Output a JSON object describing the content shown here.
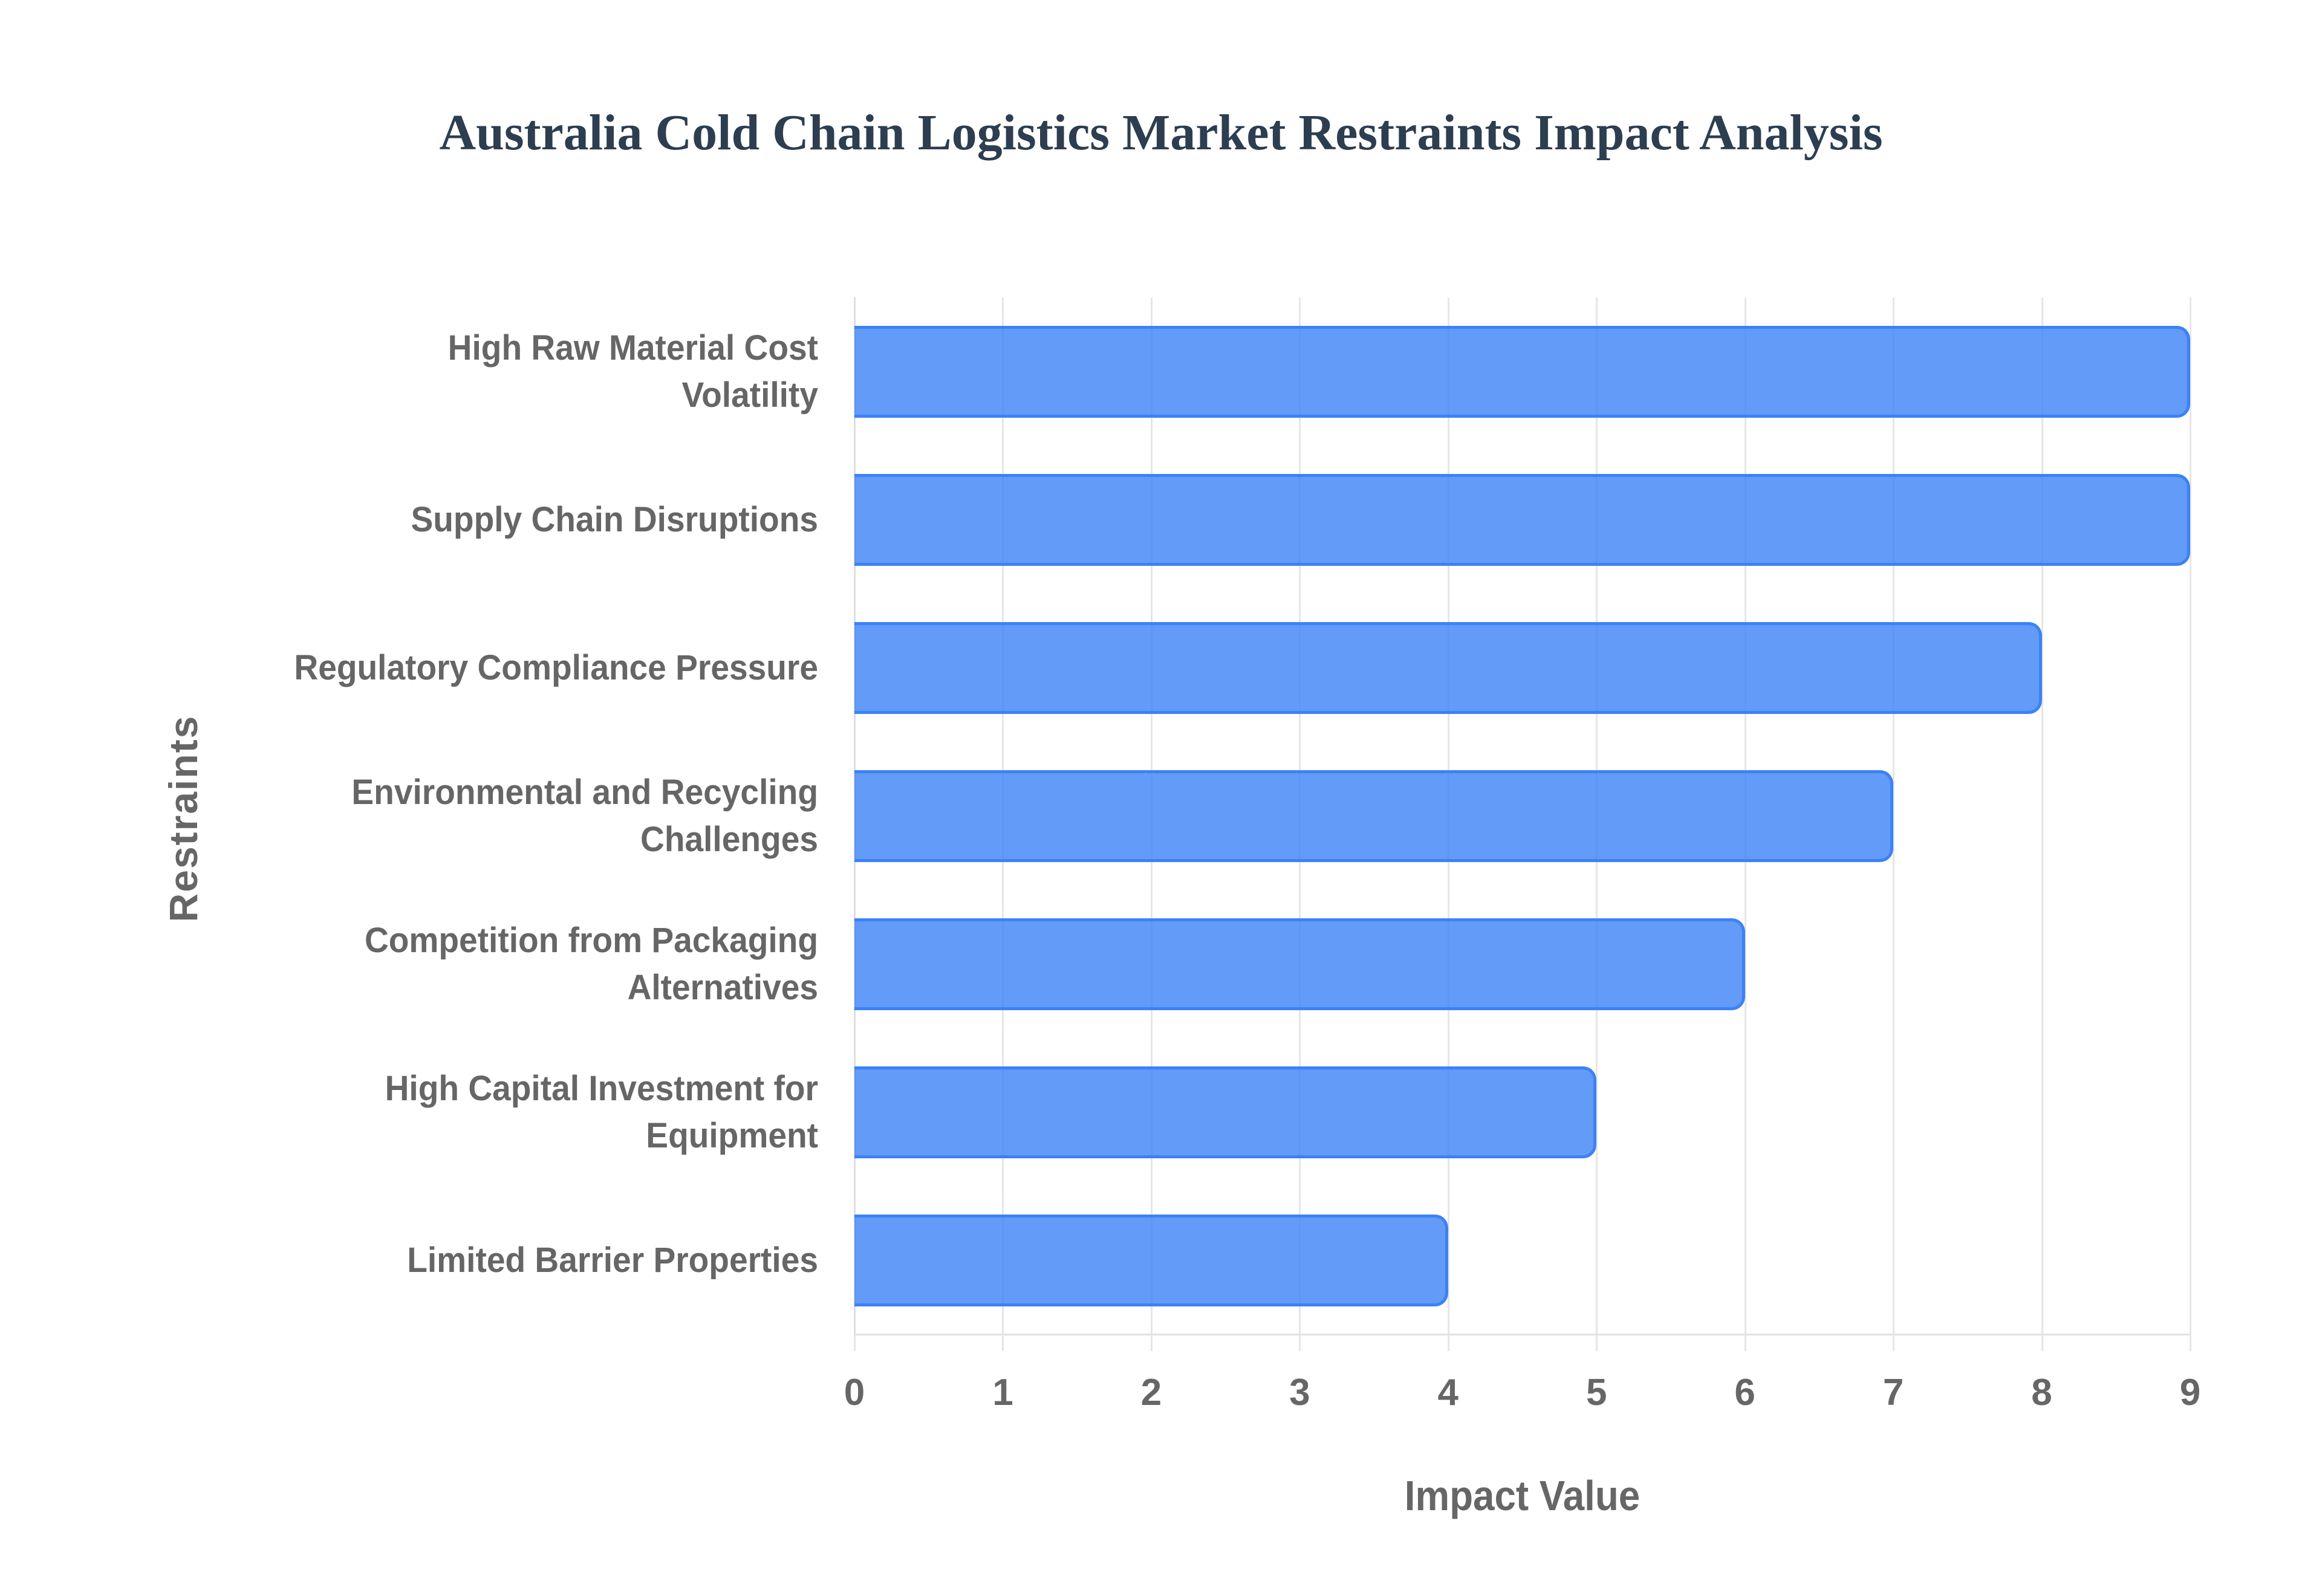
{
  "title": "Australia Cold Chain Logistics Market Restraints Impact Analysis",
  "colors": {
    "bar_fill": "rgba(59,130,246,0.8)",
    "bar_border": "#3b82f6",
    "title": "#2c3e50",
    "axis_text": "#666666",
    "grid": "#e6e6e6"
  },
  "chart_data": {
    "type": "bar",
    "orientation": "horizontal",
    "title": "Australia Cold Chain Logistics Market Restraints Impact Analysis",
    "xlabel": "Impact Value",
    "ylabel": "Restraints",
    "categories": [
      "High Raw Material Cost Volatility",
      "Supply Chain Disruptions",
      "Regulatory Compliance Pressure",
      "Environmental and Recycling Challenges",
      "Competition from Packaging Alternatives",
      "High Capital Investment for Equipment",
      "Limited Barrier Properties"
    ],
    "category_label_lines": [
      [
        "High Raw Material Cost",
        "Volatility"
      ],
      [
        "Supply Chain Disruptions"
      ],
      [
        "Regulatory Compliance Pressure"
      ],
      [
        "Environmental and Recycling",
        "Challenges"
      ],
      [
        "Competition from Packaging",
        "Alternatives"
      ],
      [
        "High Capital Investment for",
        "Equipment"
      ],
      [
        "Limited Barrier Properties"
      ]
    ],
    "values": [
      9,
      9,
      8,
      7,
      6,
      5,
      4
    ],
    "xlim": [
      0,
      9
    ],
    "xticks": [
      "0",
      "1",
      "2",
      "3",
      "4",
      "5",
      "6",
      "7",
      "8",
      "9"
    ],
    "grid": true,
    "legend": null
  }
}
